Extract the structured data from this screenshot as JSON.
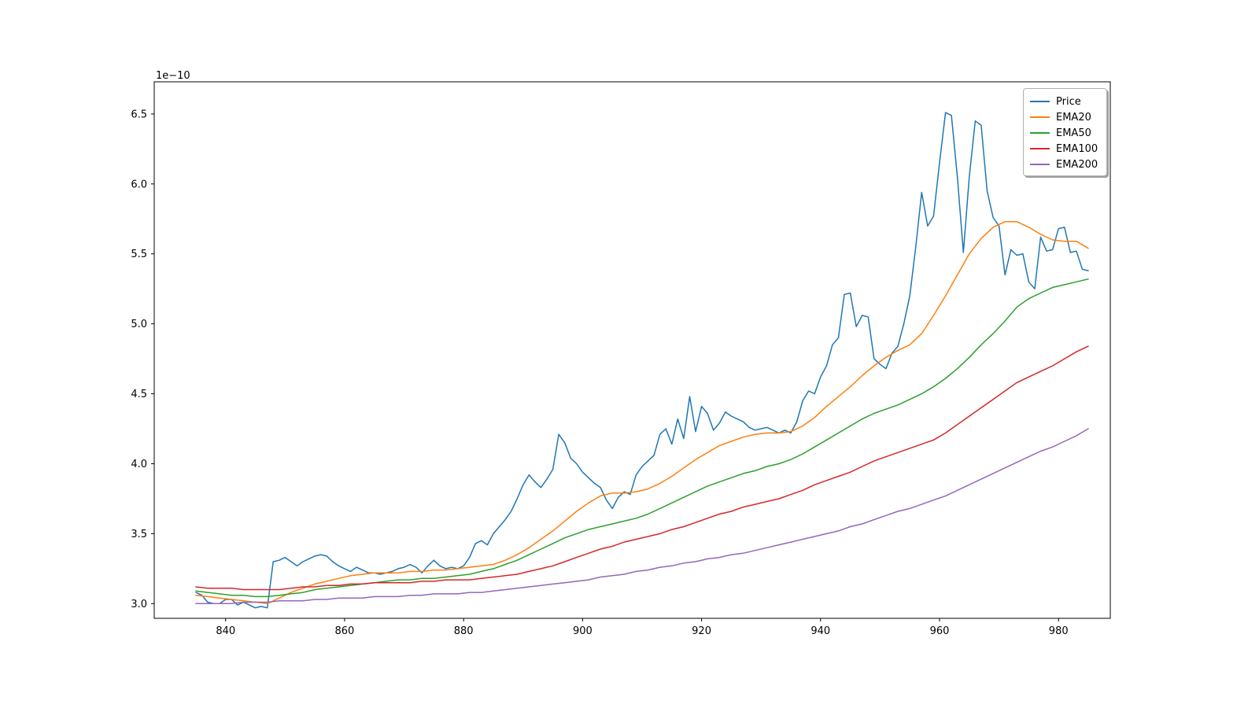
{
  "chart_data": {
    "type": "line",
    "title": "",
    "xlabel": "",
    "ylabel": "",
    "offset_label": "1e−10",
    "grid": false,
    "legend_position": "upper right",
    "xlim": [
      828.0,
      988.7
    ],
    "ylim": [
      2.895,
      6.73
    ],
    "x_ticks": [
      {
        "value": 840,
        "label": "840"
      },
      {
        "value": 860,
        "label": "860"
      },
      {
        "value": 880,
        "label": "880"
      },
      {
        "value": 900,
        "label": "900"
      },
      {
        "value": 920,
        "label": "920"
      },
      {
        "value": 940,
        "label": "940"
      },
      {
        "value": 960,
        "label": "960"
      },
      {
        "value": 980,
        "label": "980"
      }
    ],
    "y_ticks": [
      {
        "value": 3.0,
        "label": "3.0"
      },
      {
        "value": 3.5,
        "label": "3.5"
      },
      {
        "value": 4.0,
        "label": "4.0"
      },
      {
        "value": 4.5,
        "label": "4.5"
      },
      {
        "value": 5.0,
        "label": "5.0"
      },
      {
        "value": 5.5,
        "label": "5.5"
      },
      {
        "value": 6.0,
        "label": "6.0"
      },
      {
        "value": 6.5,
        "label": "6.5"
      }
    ],
    "y_unit_multiplier": "1e-10",
    "series": [
      {
        "name": "Price",
        "color": "#1f77b4",
        "x_start": 835,
        "x_step": 1,
        "values": [
          3.08,
          3.06,
          3.01,
          3.0,
          3.0,
          3.03,
          3.03,
          2.99,
          3.01,
          2.99,
          2.97,
          2.98,
          2.97,
          3.3,
          3.31,
          3.33,
          3.3,
          3.27,
          3.3,
          3.32,
          3.34,
          3.35,
          3.34,
          3.3,
          3.27,
          3.25,
          3.23,
          3.26,
          3.24,
          3.22,
          3.22,
          3.21,
          3.22,
          3.23,
          3.25,
          3.26,
          3.28,
          3.26,
          3.22,
          3.27,
          3.31,
          3.27,
          3.25,
          3.26,
          3.25,
          3.27,
          3.33,
          3.43,
          3.45,
          3.42,
          3.5,
          3.55,
          3.6,
          3.66,
          3.75,
          3.85,
          3.92,
          3.87,
          3.83,
          3.89,
          3.96,
          4.21,
          4.15,
          4.04,
          4.0,
          3.94,
          3.9,
          3.86,
          3.83,
          3.74,
          3.68,
          3.76,
          3.8,
          3.78,
          3.92,
          3.98,
          4.02,
          4.06,
          4.21,
          4.25,
          4.14,
          4.32,
          4.18,
          4.48,
          4.23,
          4.41,
          4.36,
          4.24,
          4.29,
          4.37,
          4.34,
          4.32,
          4.3,
          4.26,
          4.24,
          4.25,
          4.26,
          4.24,
          4.22,
          4.24,
          4.22,
          4.3,
          4.45,
          4.52,
          4.5,
          4.62,
          4.7,
          4.85,
          4.9,
          5.21,
          5.22,
          4.98,
          5.06,
          5.05,
          4.75,
          4.71,
          4.68,
          4.79,
          4.84,
          5.0,
          5.2,
          5.55,
          5.94,
          5.7,
          5.77,
          6.15,
          6.51,
          6.49,
          6.05,
          5.51,
          6.05,
          6.45,
          6.42,
          5.95,
          5.76,
          5.7,
          5.35,
          5.53,
          5.49,
          5.5,
          5.3,
          5.25,
          5.62,
          5.52,
          5.53,
          5.68,
          5.69,
          5.51,
          5.52,
          5.39,
          5.38
        ]
      },
      {
        "name": "EMA20",
        "color": "#ff7f0e",
        "x_start": 835,
        "x_step": 2,
        "values": [
          3.06,
          3.05,
          3.04,
          3.03,
          3.02,
          3.01,
          3.0,
          3.04,
          3.08,
          3.11,
          3.14,
          3.16,
          3.18,
          3.2,
          3.21,
          3.22,
          3.22,
          3.22,
          3.23,
          3.23,
          3.24,
          3.24,
          3.25,
          3.26,
          3.27,
          3.28,
          3.31,
          3.35,
          3.4,
          3.46,
          3.52,
          3.59,
          3.66,
          3.72,
          3.77,
          3.79,
          3.79,
          3.8,
          3.82,
          3.86,
          3.91,
          3.97,
          4.03,
          4.08,
          4.13,
          4.16,
          4.19,
          4.21,
          4.22,
          4.22,
          4.23,
          4.27,
          4.33,
          4.41,
          4.48,
          4.55,
          4.63,
          4.7,
          4.76,
          4.81,
          4.85,
          4.93,
          5.06,
          5.2,
          5.35,
          5.5,
          5.61,
          5.69,
          5.73,
          5.73,
          5.69,
          5.64,
          5.6,
          5.59,
          5.59,
          5.54
        ]
      },
      {
        "name": "EMA50",
        "color": "#2ca02c",
        "x_start": 835,
        "x_step": 2,
        "values": [
          3.09,
          3.08,
          3.07,
          3.06,
          3.06,
          3.05,
          3.05,
          3.06,
          3.07,
          3.08,
          3.1,
          3.11,
          3.12,
          3.13,
          3.14,
          3.15,
          3.16,
          3.17,
          3.17,
          3.18,
          3.18,
          3.19,
          3.2,
          3.21,
          3.23,
          3.25,
          3.28,
          3.31,
          3.35,
          3.39,
          3.43,
          3.47,
          3.5,
          3.53,
          3.55,
          3.57,
          3.59,
          3.61,
          3.64,
          3.68,
          3.72,
          3.76,
          3.8,
          3.84,
          3.87,
          3.9,
          3.93,
          3.95,
          3.98,
          4.0,
          4.03,
          4.07,
          4.12,
          4.17,
          4.22,
          4.27,
          4.32,
          4.36,
          4.39,
          4.42,
          4.46,
          4.5,
          4.55,
          4.61,
          4.68,
          4.76,
          4.85,
          4.93,
          5.02,
          5.12,
          5.18,
          5.22,
          5.26,
          5.28,
          5.3,
          5.32
        ]
      },
      {
        "name": "EMA100",
        "color": "#d62728",
        "x_start": 835,
        "x_step": 2,
        "values": [
          3.12,
          3.11,
          3.11,
          3.11,
          3.1,
          3.1,
          3.1,
          3.1,
          3.11,
          3.12,
          3.12,
          3.13,
          3.13,
          3.14,
          3.14,
          3.15,
          3.15,
          3.15,
          3.15,
          3.16,
          3.16,
          3.17,
          3.17,
          3.17,
          3.18,
          3.19,
          3.2,
          3.21,
          3.23,
          3.25,
          3.27,
          3.3,
          3.33,
          3.36,
          3.39,
          3.41,
          3.44,
          3.46,
          3.48,
          3.5,
          3.53,
          3.55,
          3.58,
          3.61,
          3.64,
          3.66,
          3.69,
          3.71,
          3.73,
          3.75,
          3.78,
          3.81,
          3.85,
          3.88,
          3.91,
          3.94,
          3.98,
          4.02,
          4.05,
          4.08,
          4.11,
          4.14,
          4.17,
          4.22,
          4.28,
          4.34,
          4.4,
          4.46,
          4.52,
          4.58,
          4.62,
          4.66,
          4.7,
          4.75,
          4.8,
          4.84
        ]
      },
      {
        "name": "EMA200",
        "color": "#9467bd",
        "x_start": 835,
        "x_step": 2,
        "values": [
          3.0,
          3.0,
          3.0,
          3.0,
          3.01,
          3.01,
          3.01,
          3.02,
          3.02,
          3.02,
          3.03,
          3.03,
          3.04,
          3.04,
          3.04,
          3.05,
          3.05,
          3.05,
          3.06,
          3.06,
          3.07,
          3.07,
          3.07,
          3.08,
          3.08,
          3.09,
          3.1,
          3.11,
          3.12,
          3.13,
          3.14,
          3.15,
          3.16,
          3.17,
          3.19,
          3.2,
          3.21,
          3.23,
          3.24,
          3.26,
          3.27,
          3.29,
          3.3,
          3.32,
          3.33,
          3.35,
          3.36,
          3.38,
          3.4,
          3.42,
          3.44,
          3.46,
          3.48,
          3.5,
          3.52,
          3.55,
          3.57,
          3.6,
          3.63,
          3.66,
          3.68,
          3.71,
          3.74,
          3.77,
          3.81,
          3.85,
          3.89,
          3.93,
          3.97,
          4.01,
          4.05,
          4.09,
          4.12,
          4.16,
          4.2,
          4.25
        ]
      }
    ]
  }
}
